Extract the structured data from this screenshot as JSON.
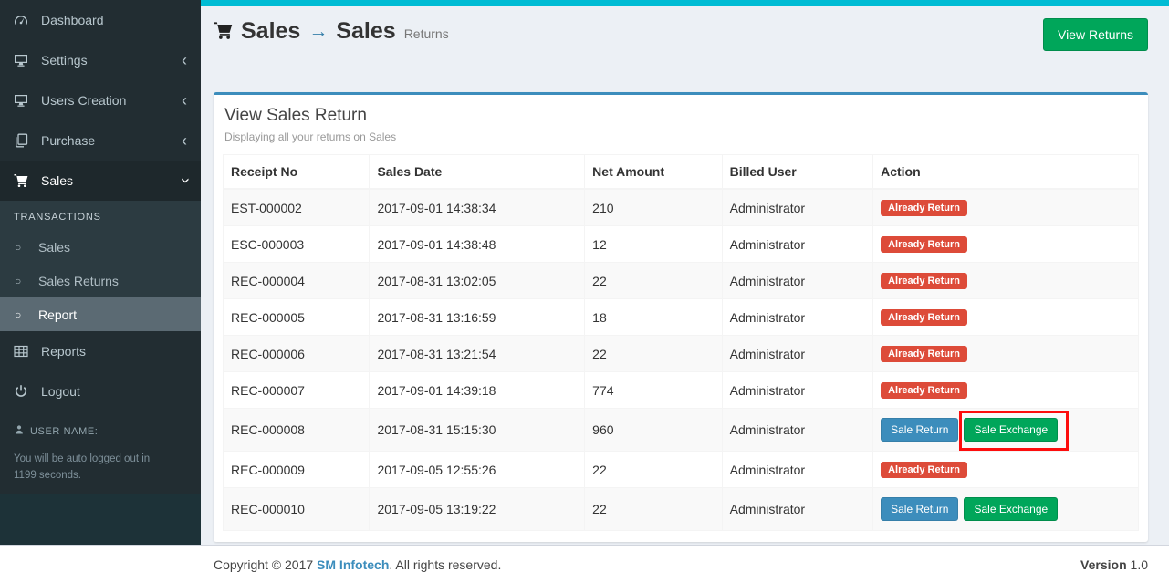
{
  "colors": {
    "topbar_accent": "#00bcd4",
    "card_accent": "#3c8dbc",
    "success_green": "#00a65a",
    "danger_red": "#dd4b39",
    "primary_blue": "#3c8dbc",
    "annotation_red": "#fd0d0d",
    "sidebar_bg": "#222d32"
  },
  "icons": {
    "breadcrumb_arrow": "→",
    "chevron_collapsed": "‹",
    "chevron_expanded": "‹",
    "submenu_bullet": "○"
  },
  "sidebar": {
    "menu": [
      {
        "label": "Dashboard"
      },
      {
        "label": "Settings"
      },
      {
        "label": "Users Creation"
      },
      {
        "label": "Purchase"
      },
      {
        "label": "Sales"
      }
    ],
    "transactions": {
      "header": "TRANSACTIONS",
      "items": [
        {
          "label": "Sales"
        },
        {
          "label": "Sales Returns"
        },
        {
          "label": "Report"
        }
      ]
    },
    "menu_bottom": [
      {
        "label": "Reports"
      },
      {
        "label": "Logout"
      }
    ],
    "user_label": "USER NAME:",
    "logout_notice": "You will be auto logged out in 1199 seconds."
  },
  "header": {
    "title_primary": "Sales",
    "title_secondary": "Sales",
    "title_sub": "Returns",
    "view_returns_button": "View Returns"
  },
  "card": {
    "title": "View Sales Return",
    "subtitle": "Displaying all your returns on Sales",
    "table": {
      "columns": [
        "Receipt No",
        "Sales Date",
        "Net Amount",
        "Billed User",
        "Action"
      ],
      "rows": [
        {
          "receipt": "EST-000002",
          "date": "2017-09-01 14:38:34",
          "amount": "210",
          "user": "Administrator",
          "actions": [
            {
              "label": "Already Return",
              "type": "danger"
            }
          ]
        },
        {
          "receipt": "ESC-000003",
          "date": "2017-09-01 14:38:48",
          "amount": "12",
          "user": "Administrator",
          "actions": [
            {
              "label": "Already Return",
              "type": "danger"
            }
          ]
        },
        {
          "receipt": "REC-000004",
          "date": "2017-08-31 13:02:05",
          "amount": "22",
          "user": "Administrator",
          "actions": [
            {
              "label": "Already Return",
              "type": "danger"
            }
          ]
        },
        {
          "receipt": "REC-000005",
          "date": "2017-08-31 13:16:59",
          "amount": "18",
          "user": "Administrator",
          "actions": [
            {
              "label": "Already Return",
              "type": "danger"
            }
          ]
        },
        {
          "receipt": "REC-000006",
          "date": "2017-08-31 13:21:54",
          "amount": "22",
          "user": "Administrator",
          "actions": [
            {
              "label": "Already Return",
              "type": "danger"
            }
          ]
        },
        {
          "receipt": "REC-000007",
          "date": "2017-09-01 14:39:18",
          "amount": "774",
          "user": "Administrator",
          "actions": [
            {
              "label": "Already Return",
              "type": "danger"
            }
          ]
        },
        {
          "receipt": "REC-000008",
          "date": "2017-08-31 15:15:30",
          "amount": "960",
          "user": "Administrator",
          "actions": [
            {
              "label": "Sale Return",
              "type": "primary"
            },
            {
              "label": "Sale Exchange",
              "type": "success",
              "annotated": true
            }
          ]
        },
        {
          "receipt": "REC-000009",
          "date": "2017-09-05 12:55:26",
          "amount": "22",
          "user": "Administrator",
          "actions": [
            {
              "label": "Already Return",
              "type": "danger"
            }
          ]
        },
        {
          "receipt": "REC-000010",
          "date": "2017-09-05 13:19:22",
          "amount": "22",
          "user": "Administrator",
          "actions": [
            {
              "label": "Sale Return",
              "type": "primary"
            },
            {
              "label": "Sale Exchange",
              "type": "success"
            }
          ]
        }
      ]
    }
  },
  "footer": {
    "copyright_prefix": "Copyright © 2017 ",
    "brand": "SM Infotech",
    "copyright_suffix": ". All rights reserved.",
    "version_label": "Version",
    "version_value": " 1.0"
  }
}
